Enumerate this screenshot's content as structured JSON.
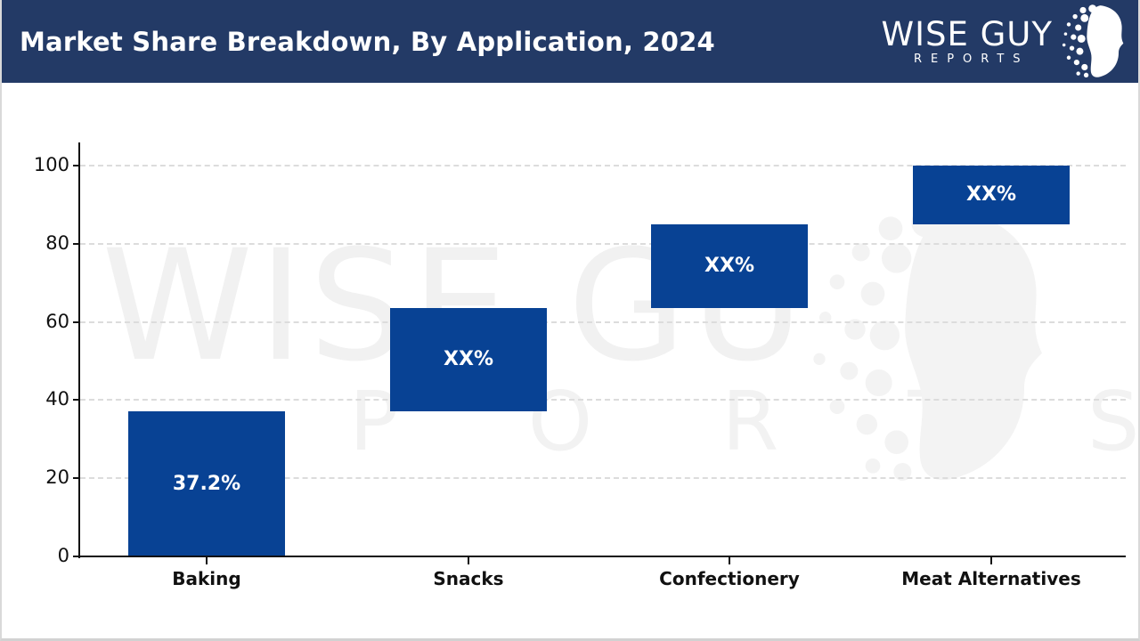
{
  "header": {
    "title": "Market Share Breakdown, By Application, 2024",
    "bg_color": "#233a66",
    "logo": {
      "line1": "WISE GUY",
      "line2": "REPORTS"
    }
  },
  "watermark": {
    "line1": "WISE GU",
    "line2": "P O R T S"
  },
  "chart_data": {
    "type": "bar",
    "subtype": "floating-waterfall",
    "title": "Market Share Breakdown, By Application, 2024",
    "categories": [
      "Baking",
      "Snacks",
      "Confectionery",
      "Meat Alternatives"
    ],
    "segments": [
      {
        "category": "Baking",
        "start": 0,
        "end": 37.2,
        "label": "37.2%"
      },
      {
        "category": "Snacks",
        "start": 37.2,
        "end": 63.6,
        "label": "XX%"
      },
      {
        "category": "Confectionery",
        "start": 63.6,
        "end": 85,
        "label": "XX%"
      },
      {
        "category": "Meat Alternatives",
        "start": 85,
        "end": 100,
        "label": "XX%"
      }
    ],
    "ylim": [
      0,
      100
    ],
    "yticks": [
      0,
      20,
      40,
      60,
      80,
      100
    ],
    "xlabel": "",
    "ylabel": "",
    "bar_color": "#084294",
    "bar_label_color": "#ffffff",
    "grid": {
      "axis": "y",
      "style": "dashed",
      "color": "#dcdcdc"
    },
    "legend": "none"
  }
}
